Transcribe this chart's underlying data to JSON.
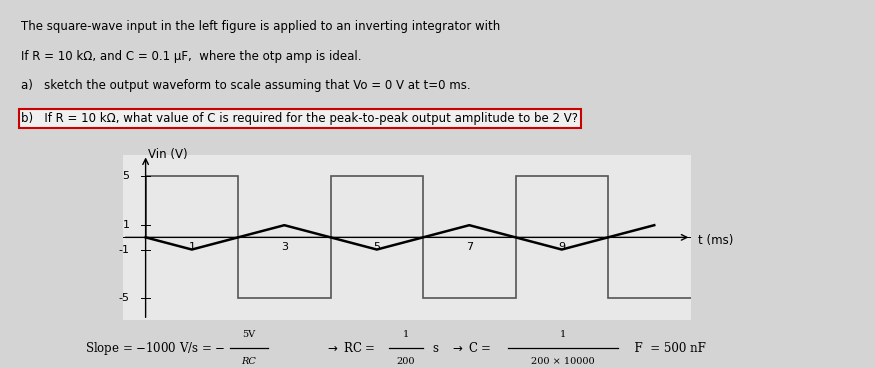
{
  "bg_color": "#d4d4d4",
  "text_box_color": "#f0f0f0",
  "text_lines": [
    "The square-wave input in the left figure is applied to an inverting integrator with",
    "If R = 10 kΩ, and C = 0.1 μF,  where the otp amp is ideal.",
    "a)   sketch the output waveform to scale assuming that Vo = 0 V at t=0 ms.",
    "b)   If R = 10 kΩ, what value of C is required for the peak-to-peak output amplitude to be 2 V?"
  ],
  "highlighted_line_index": 3,
  "highlight_border_color": "#cc0000",
  "plot_area_bg": "#e8e8e8",
  "ylabel": "Vin (V)",
  "xlabel": "t (ms)",
  "ytick_labels": [
    "-5",
    "-1",
    "1",
    "5"
  ],
  "ytick_vals": [
    -5,
    -1,
    1,
    5
  ],
  "xtick_labels": [
    "1",
    "3",
    "5",
    "7",
    "9"
  ],
  "xtick_vals": [
    1,
    3,
    5,
    7,
    9
  ],
  "ylim": [
    -6.8,
    6.8
  ],
  "xlim": [
    -0.5,
    11.8
  ],
  "square_wave_color": "#555555",
  "triangle_wave_color": "#000000",
  "square_wave_lw": 1.2,
  "triangle_wave_lw": 1.8,
  "font_size_text": 8.5,
  "font_size_axis": 8,
  "font_size_annotation": 8.5
}
